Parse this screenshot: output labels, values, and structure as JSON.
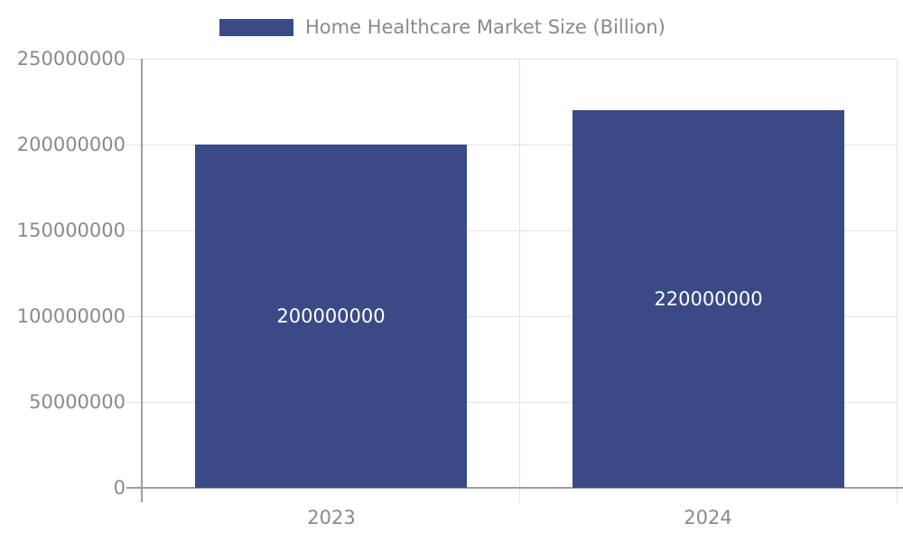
{
  "chart_data": {
    "type": "bar",
    "title": "Home Healthcare Market Size (Billion)",
    "categories": [
      "2023",
      "2024"
    ],
    "series": [
      {
        "name": "Home Healthcare Market Size (Billion)",
        "values": [
          200000000,
          220000000
        ]
      }
    ],
    "data_labels": [
      "200000000",
      "220000000"
    ],
    "xlabel": "",
    "ylabel": "",
    "ylim": [
      0,
      250000000
    ],
    "yticks": [
      0,
      50000000,
      100000000,
      150000000,
      200000000,
      250000000
    ],
    "ytick_labels": [
      "0",
      "50000000",
      "100000000",
      "150000000",
      "200000000",
      "250000000"
    ],
    "grid": "on",
    "legend_position": "top-center",
    "colors": {
      "bar": "#394a87",
      "bar_value_text": "#ffffff",
      "grid": "#e3e3e3",
      "axis": "#9e9e9e",
      "tick_text": "#8a8a8a",
      "title_text": "#8a8a8a",
      "background": "#ffffff"
    }
  }
}
